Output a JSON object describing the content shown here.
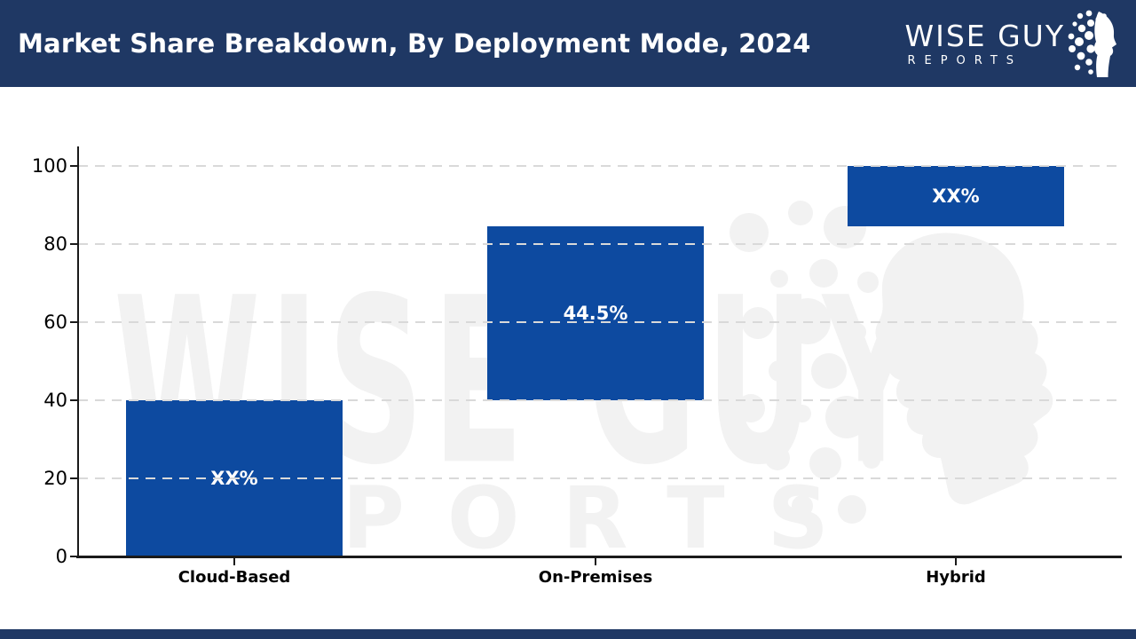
{
  "header": {
    "title": "Market Share Breakdown, By Deployment Mode, 2024",
    "logo": {
      "line1": "WISE GUY",
      "line2": "REPORTS"
    }
  },
  "watermark": {
    "line1": "WISE GUY",
    "line2": "REPORTS"
  },
  "colors": {
    "header_bg": "#1f3864",
    "footer_bg": "#1f3864",
    "bar": "#0d4aa0",
    "grid": "#d9d9d9",
    "watermark": "#f2f2f2",
    "axis": "#1a1a1a",
    "bar_label": "#ffffff",
    "title_text": "#ffffff"
  },
  "chart_data": {
    "type": "bar",
    "variant": "waterfall",
    "title": "Market Share Breakdown, By Deployment Mode, 2024",
    "categories": [
      "Cloud-Based",
      "On-Premises",
      "Hybrid"
    ],
    "segments": [
      {
        "category": "Cloud-Based",
        "start": 0,
        "end": 40,
        "label": "XX%"
      },
      {
        "category": "On-Premises",
        "start": 40,
        "end": 84.5,
        "label": "44.5%"
      },
      {
        "category": "Hybrid",
        "start": 84.5,
        "end": 100,
        "label": "XX%"
      }
    ],
    "yticks": [
      0,
      20,
      40,
      60,
      80,
      100
    ],
    "ylim": [
      0,
      100
    ],
    "xlabel": "",
    "ylabel": "",
    "grid": "dashed-horizontal",
    "legend": null
  }
}
